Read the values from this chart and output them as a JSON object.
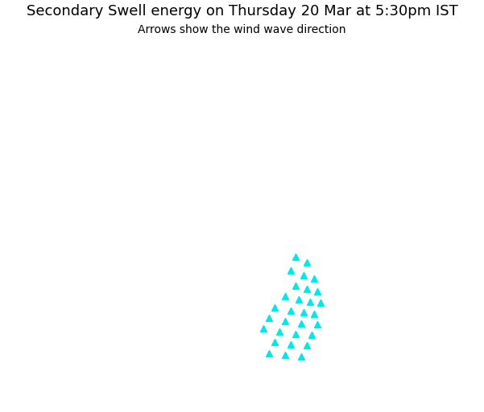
{
  "title": "Secondary Swell energy on Thursday 20 Mar at 5:30pm IST",
  "subtitle": "Arrows show the wind wave direction",
  "title_fontsize": 13,
  "subtitle_fontsize": 10,
  "fig_width": 6.01,
  "fig_height": 5.12,
  "map_extent": [
    60,
    105,
    5,
    40
  ],
  "ocean_color": "#000010",
  "arrow_color": "#00e8e8",
  "background_color": "#ffffff",
  "arrows": [
    {
      "lon": 87.5,
      "lat": 19.5
    },
    {
      "lon": 88.5,
      "lat": 19.0
    },
    {
      "lon": 87.0,
      "lat": 18.2
    },
    {
      "lon": 88.2,
      "lat": 17.8
    },
    {
      "lon": 89.2,
      "lat": 17.5
    },
    {
      "lon": 87.5,
      "lat": 16.8
    },
    {
      "lon": 88.5,
      "lat": 16.5
    },
    {
      "lon": 89.5,
      "lat": 16.3
    },
    {
      "lon": 86.5,
      "lat": 15.8
    },
    {
      "lon": 87.8,
      "lat": 15.5
    },
    {
      "lon": 88.8,
      "lat": 15.3
    },
    {
      "lon": 89.8,
      "lat": 15.2
    },
    {
      "lon": 85.5,
      "lat": 14.8
    },
    {
      "lon": 87.0,
      "lat": 14.5
    },
    {
      "lon": 88.2,
      "lat": 14.3
    },
    {
      "lon": 89.2,
      "lat": 14.2
    },
    {
      "lon": 85.0,
      "lat": 13.8
    },
    {
      "lon": 86.5,
      "lat": 13.5
    },
    {
      "lon": 88.0,
      "lat": 13.3
    },
    {
      "lon": 89.5,
      "lat": 13.2
    },
    {
      "lon": 84.5,
      "lat": 12.8
    },
    {
      "lon": 86.0,
      "lat": 12.5
    },
    {
      "lon": 87.5,
      "lat": 12.3
    },
    {
      "lon": 89.0,
      "lat": 12.2
    },
    {
      "lon": 85.5,
      "lat": 11.5
    },
    {
      "lon": 87.0,
      "lat": 11.3
    },
    {
      "lon": 88.5,
      "lat": 11.2
    },
    {
      "lon": 85.0,
      "lat": 10.5
    },
    {
      "lon": 86.5,
      "lat": 10.3
    },
    {
      "lon": 88.0,
      "lat": 10.2
    }
  ]
}
